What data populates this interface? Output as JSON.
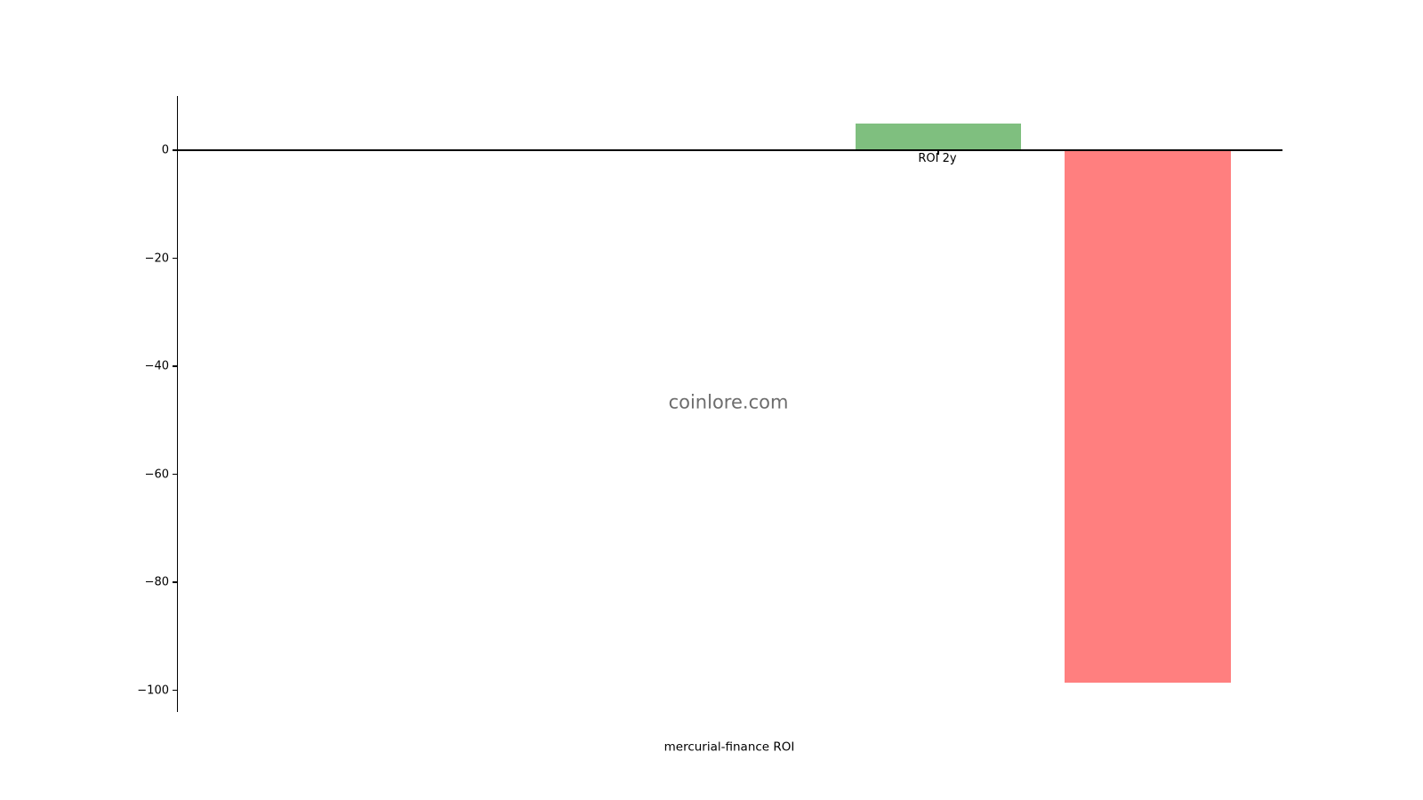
{
  "chart_data": {
    "type": "bar",
    "title": "",
    "xlabel": "mercurial-finance ROI",
    "ylabel": "",
    "categories": [
      "ROI 2y",
      ""
    ],
    "values": [
      5,
      -98.6
    ],
    "bar_colors": [
      "#7fbf7f",
      "#ff7f7f"
    ],
    "ylim": [
      -104,
      10
    ],
    "yticks": [
      {
        "value": 0,
        "label": "0"
      },
      {
        "value": -20,
        "label": "−20"
      },
      {
        "value": -40,
        "label": "−40"
      },
      {
        "value": -60,
        "label": "−60"
      },
      {
        "value": -80,
        "label": "−80"
      },
      {
        "value": -100,
        "label": "−100"
      }
    ],
    "grid": false,
    "legend": null,
    "baseline": 0
  },
  "watermark": "coinlore.com",
  "colors": {
    "axis": "#000000",
    "watermark": "#6d6d6d",
    "text": "#000000",
    "background": "#ffffff"
  }
}
